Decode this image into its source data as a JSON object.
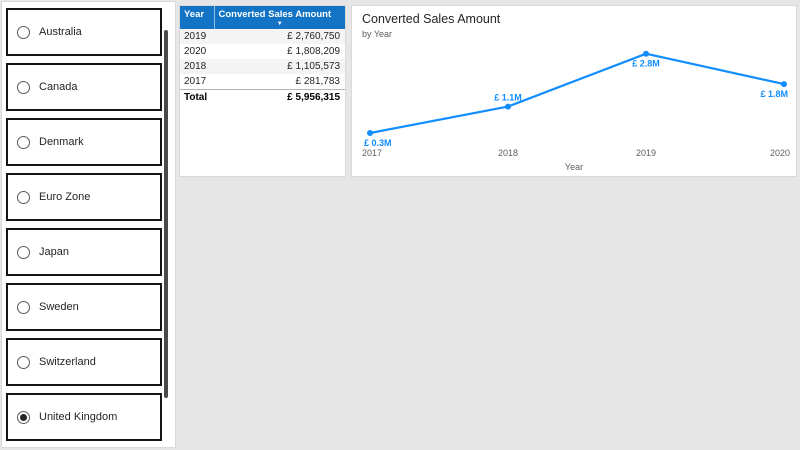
{
  "colors": {
    "accent": "#118DFF",
    "table_header_bg": "#1373C4",
    "page_bg": "#E6E6E6"
  },
  "slicer": {
    "items": [
      {
        "label": "Australia",
        "selected": false
      },
      {
        "label": "Canada",
        "selected": false
      },
      {
        "label": "Denmark",
        "selected": false
      },
      {
        "label": "Euro Zone",
        "selected": false
      },
      {
        "label": "Japan",
        "selected": false
      },
      {
        "label": "Sweden",
        "selected": false
      },
      {
        "label": "Switzerland",
        "selected": false
      },
      {
        "label": "United Kingdom",
        "selected": true
      }
    ]
  },
  "table": {
    "columns": [
      "Year",
      "Converted Sales Amount"
    ],
    "sort_indicator": "▼",
    "rows": [
      {
        "year": "2019",
        "value": "£ 2,760,750"
      },
      {
        "year": "2020",
        "value": "£ 1,808,209"
      },
      {
        "year": "2018",
        "value": "£ 1,105,573"
      },
      {
        "year": "2017",
        "value": "£ 281,783"
      }
    ],
    "total": {
      "label": "Total",
      "value": "£ 5,956,315"
    }
  },
  "chart": {
    "title": "Converted Sales Amount",
    "subtitle": "by Year",
    "xlabel": "Year"
  },
  "chart_data": {
    "type": "line",
    "title": "Converted Sales Amount",
    "subtitle": "by Year",
    "xlabel": "Year",
    "x": [
      "2017",
      "2018",
      "2019",
      "2020"
    ],
    "values": [
      281783,
      1105573,
      2760750,
      1808209
    ],
    "point_labels": [
      "£ 0.3M",
      "£ 1.1M",
      "£ 2.8M",
      "£ 1.8M"
    ],
    "ylim": [
      0,
      3000000
    ],
    "line_color": "#118DFF",
    "grid": false,
    "legend": "none"
  }
}
